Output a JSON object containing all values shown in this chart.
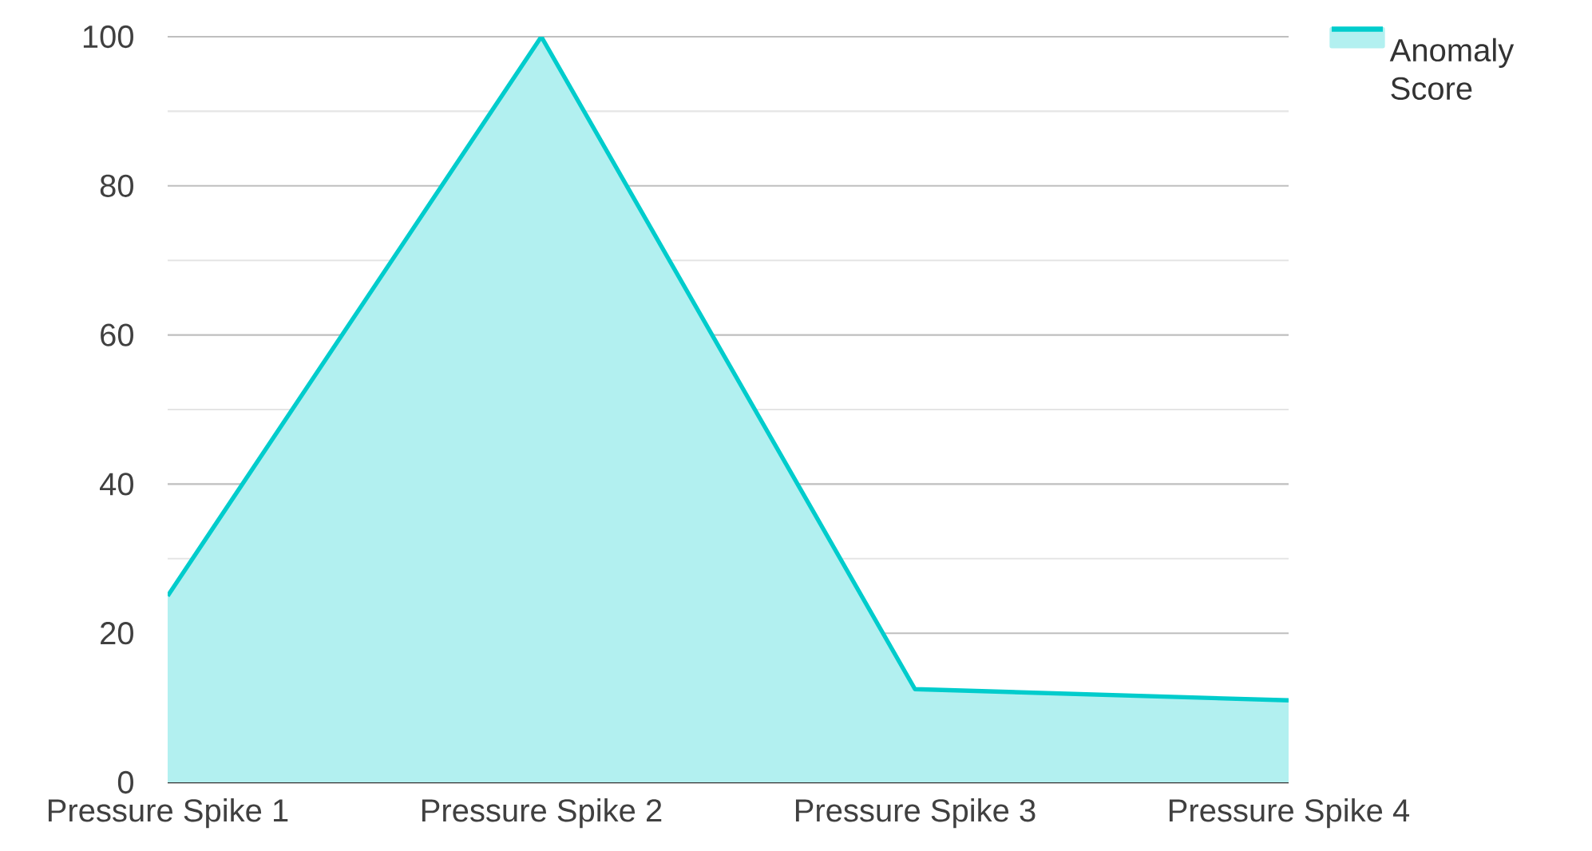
{
  "chart_data": {
    "type": "area",
    "categories": [
      "Pressure Spike 1",
      "Pressure Spike 2",
      "Pressure Spike 3",
      "Pressure Spike 4"
    ],
    "series": [
      {
        "name": "Anomaly Score",
        "color": "#00cccc",
        "values": [
          25,
          100,
          12.5,
          11
        ]
      }
    ],
    "ylim": [
      0,
      100
    ],
    "yticks": [
      0,
      20,
      40,
      60,
      80,
      100
    ],
    "grid": "y",
    "legend": "top right"
  }
}
